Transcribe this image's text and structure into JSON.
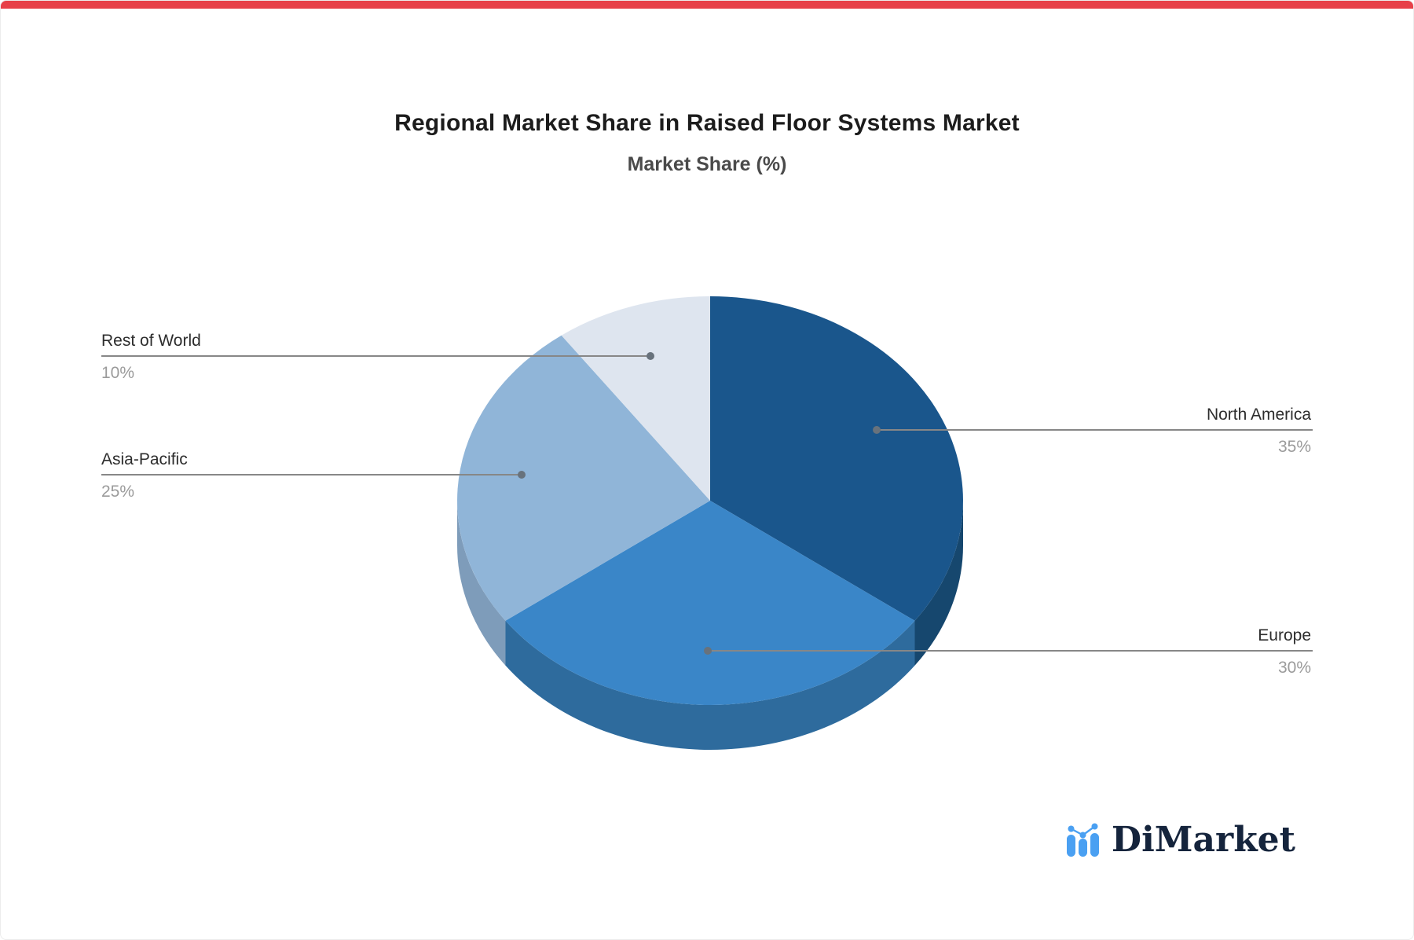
{
  "page": {
    "top_bar_color": "#e74048",
    "background_color": "#ffffff"
  },
  "header": {
    "title": "Regional Market Share in Raised Floor Systems Market",
    "subtitle": "Market Share (%)"
  },
  "chart_data": {
    "type": "pie",
    "style": "3d",
    "title": "Regional Market Share in Raised Floor Systems Market",
    "subtitle": "Market Share (%)",
    "unit": "%",
    "direction": "clockwise",
    "start_angle_deg": 0,
    "legend_position": "callout-labels",
    "slices": [
      {
        "label": "North America",
        "value": 35,
        "display": "35%",
        "color": "#1a568c",
        "side_color": "#16476e"
      },
      {
        "label": "Europe",
        "value": 30,
        "display": "30%",
        "color": "#3a86c8",
        "side_color": "#2e6b9d"
      },
      {
        "label": "Asia-Pacific",
        "value": 25,
        "display": "25%",
        "color": "#90b5d8",
        "side_color": "#7e9cba"
      },
      {
        "label": "Rest of World",
        "value": 10,
        "display": "10%",
        "color": "#dee5ef",
        "side_color": "#b9c4d4"
      }
    ],
    "callout_line_color": "#878787",
    "callout_dot_color": "#68727c"
  },
  "branding": {
    "logo_text": "DiMarket",
    "logo_icon": "bar-line-chart-icon",
    "icon_color": "#4aa0f2",
    "text_color": "#15243c"
  }
}
